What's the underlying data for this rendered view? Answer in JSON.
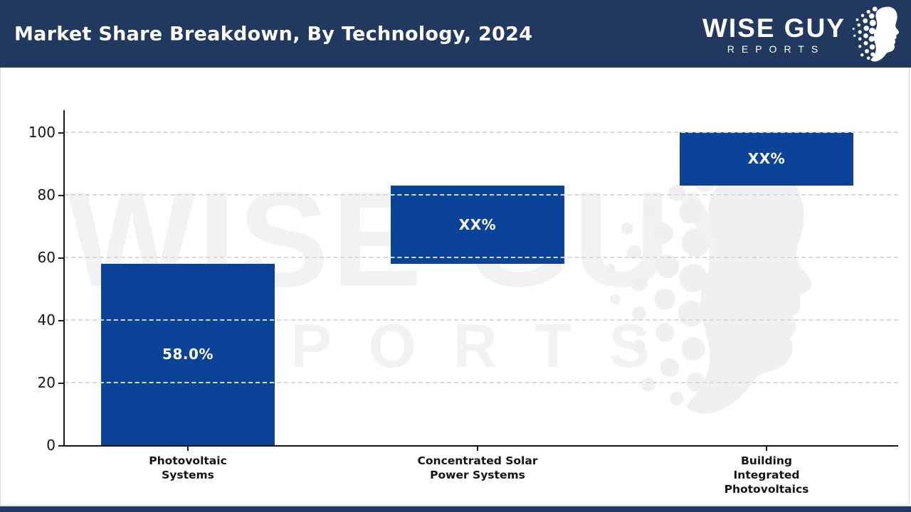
{
  "header": {
    "title": "Market Share Breakdown, By Technology, 2024",
    "bg_color": "#21395f",
    "logo": {
      "line1": "WISE GUY",
      "line2": "REPORTS"
    }
  },
  "watermark": {
    "line1": "WISE GUY",
    "line2": "REPORTS"
  },
  "chart_data": {
    "type": "bar",
    "subtype": "waterfall",
    "title": "Market Share Breakdown, By Technology, 2024",
    "categories": [
      "Photovoltaic Systems",
      "Concentrated Solar Power Systems",
      "Building Integrated Photovoltaics"
    ],
    "category_label_lines": [
      [
        "Photovoltaic",
        "Systems"
      ],
      [
        "Concentrated Solar",
        "Power Systems"
      ],
      [
        "Building",
        "Integrated",
        "Photovoltaics"
      ]
    ],
    "segments": [
      {
        "category": "Photovoltaic Systems",
        "start": 0,
        "end": 58,
        "label": "58.0%"
      },
      {
        "category": "Concentrated Solar Power Systems",
        "start": 58,
        "end": 83,
        "label": "XX%"
      },
      {
        "category": "Building Integrated Photovoltaics",
        "start": 83,
        "end": 100,
        "label": "XX%"
      }
    ],
    "xlabel": "",
    "ylabel": "",
    "ylim": [
      0,
      100
    ],
    "yticks": [
      0,
      20,
      40,
      60,
      80,
      100
    ],
    "grid": "horizontal-dashed",
    "legend": "none",
    "bar_color": "#0b4399",
    "bar_label_color": "#ffffff"
  },
  "colors": {
    "header_bg": "#21395f",
    "footer_bg": "#21395f",
    "bar": "#0b4399",
    "gridline": "#d9d9d9",
    "axis": "#141414",
    "watermark": "#f2f2f4"
  }
}
